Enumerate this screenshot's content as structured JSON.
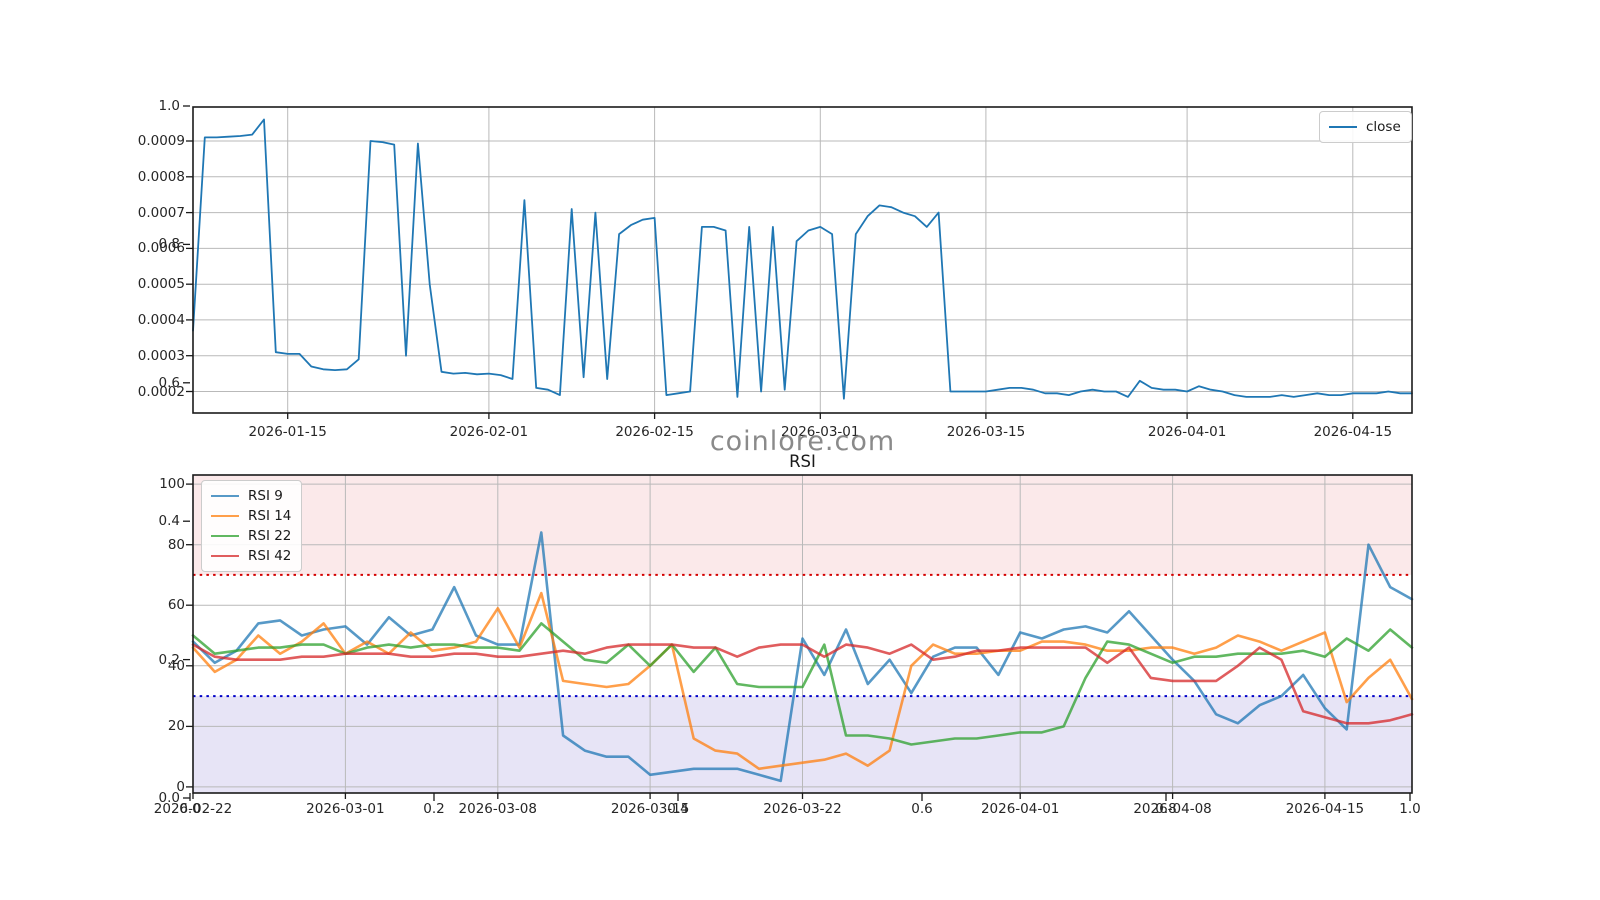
{
  "watermark": {
    "text": "coinlore.com",
    "color": "#8a8a8a"
  },
  "style": {
    "grid_color": "#b9b9b9",
    "spine_color": "#1a1a1a",
    "tick_text_color": "#262626",
    "background": "#ffffff"
  },
  "overlay_axis": {
    "x_tick_labels": [
      "0.0",
      "0.2",
      "0.4",
      "0.6",
      "0.8",
      "1.0"
    ],
    "y_tick_labels": [
      "0.0",
      "0.2",
      "0.4",
      "0.6",
      "0.8",
      "1.0"
    ]
  },
  "chart_data": [
    {
      "type": "line",
      "name": "price",
      "title": "",
      "legend_position": "upper right",
      "grid": true,
      "ylim": [
        0.00014,
        0.000995
      ],
      "yticks": [
        0.0002,
        0.0003,
        0.0004,
        0.0005,
        0.0006,
        0.0007,
        0.0008,
        0.0009
      ],
      "x_ticks": [
        "2026-01-15",
        "2026-02-01",
        "2026-02-15",
        "2026-03-01",
        "2026-03-15",
        "2026-04-01",
        "2026-04-15"
      ],
      "x": [
        "2026-01-07",
        "2026-01-08",
        "2026-01-09",
        "2026-01-10",
        "2026-01-11",
        "2026-01-12",
        "2026-01-13",
        "2026-01-14",
        "2026-01-15",
        "2026-01-16",
        "2026-01-17",
        "2026-01-18",
        "2026-01-19",
        "2026-01-20",
        "2026-01-21",
        "2026-01-22",
        "2026-01-23",
        "2026-01-24",
        "2026-01-25",
        "2026-01-26",
        "2026-01-27",
        "2026-01-28",
        "2026-01-29",
        "2026-01-30",
        "2026-01-31",
        "2026-02-01",
        "2026-02-02",
        "2026-02-03",
        "2026-02-04",
        "2026-02-05",
        "2026-02-06",
        "2026-02-07",
        "2026-02-08",
        "2026-02-09",
        "2026-02-10",
        "2026-02-11",
        "2026-02-12",
        "2026-02-13",
        "2026-02-14",
        "2026-02-15",
        "2026-02-16",
        "2026-02-17",
        "2026-02-18",
        "2026-02-19",
        "2026-02-20",
        "2026-02-21",
        "2026-02-22",
        "2026-02-23",
        "2026-02-24",
        "2026-02-25",
        "2026-02-26",
        "2026-02-27",
        "2026-02-28",
        "2026-03-01",
        "2026-03-02",
        "2026-03-03",
        "2026-03-04",
        "2026-03-05",
        "2026-03-06",
        "2026-03-07",
        "2026-03-08",
        "2026-03-09",
        "2026-03-10",
        "2026-03-11",
        "2026-03-12",
        "2026-03-13",
        "2026-03-14",
        "2026-03-15",
        "2026-03-16",
        "2026-03-17",
        "2026-03-18",
        "2026-03-19",
        "2026-03-20",
        "2026-03-21",
        "2026-03-22",
        "2026-03-23",
        "2026-03-24",
        "2026-03-25",
        "2026-03-26",
        "2026-03-27",
        "2026-03-28",
        "2026-03-29",
        "2026-03-30",
        "2026-03-31",
        "2026-04-01",
        "2026-04-02",
        "2026-04-03",
        "2026-04-04",
        "2026-04-05",
        "2026-04-06",
        "2026-04-07",
        "2026-04-08",
        "2026-04-09",
        "2026-04-10",
        "2026-04-11",
        "2026-04-12",
        "2026-04-13",
        "2026-04-14",
        "2026-04-15",
        "2026-04-16",
        "2026-04-17",
        "2026-04-18",
        "2026-04-19",
        "2026-04-20"
      ],
      "series": [
        {
          "name": "close",
          "color": "#1f77b4",
          "width": 1.8,
          "opacity": 1,
          "values": [
            0.00037,
            0.00091,
            0.00091,
            0.000912,
            0.000914,
            0.000918,
            0.00096,
            0.00031,
            0.000305,
            0.000305,
            0.00027,
            0.000262,
            0.00026,
            0.000262,
            0.00029,
            0.0009,
            0.000897,
            0.00089,
            0.0003,
            0.000893,
            0.0005,
            0.000255,
            0.00025,
            0.000252,
            0.000248,
            0.00025,
            0.000246,
            0.000235,
            0.000735,
            0.00021,
            0.000205,
            0.00019,
            0.00071,
            0.00024,
            0.0007,
            0.000235,
            0.00064,
            0.000665,
            0.00068,
            0.000685,
            0.00019,
            0.000195,
            0.0002,
            0.00066,
            0.00066,
            0.00065,
            0.000185,
            0.00066,
            0.0002,
            0.00066,
            0.000205,
            0.00062,
            0.00065,
            0.00066,
            0.00064,
            0.00018,
            0.00064,
            0.00069,
            0.00072,
            0.000715,
            0.0007,
            0.00069,
            0.00066,
            0.0007,
            0.0002,
            0.0002,
            0.0002,
            0.0002,
            0.000205,
            0.00021,
            0.00021,
            0.000205,
            0.000195,
            0.000195,
            0.00019,
            0.0002,
            0.000205,
            0.0002,
            0.0002,
            0.000185,
            0.00023,
            0.00021,
            0.000205,
            0.000205,
            0.0002,
            0.000215,
            0.000205,
            0.0002,
            0.00019,
            0.000185,
            0.000185,
            0.000185,
            0.00019,
            0.000185,
            0.00019,
            0.000195,
            0.00019,
            0.00019,
            0.000195,
            0.000195,
            0.000195,
            0.0002,
            0.000195,
            0.000195
          ]
        }
      ]
    },
    {
      "type": "line",
      "name": "rsi",
      "title": "RSI",
      "legend_position": "upper left",
      "grid": true,
      "ylim": [
        -2,
        103
      ],
      "yticks": [
        0,
        20,
        40,
        60,
        80,
        100
      ],
      "x_ticks": [
        "2026-02-22",
        "2026-03-01",
        "2026-03-08",
        "2026-03-15",
        "2026-03-22",
        "2026-04-01",
        "2026-04-08",
        "2026-04-15"
      ],
      "bands": [
        {
          "from": 70,
          "to": 103,
          "fill": "#fbe9ea",
          "name": "overbought-zone"
        },
        {
          "from": -2,
          "to": 30,
          "fill": "#e7e4f6",
          "name": "oversold-zone"
        }
      ],
      "thresholds": [
        {
          "value": 70,
          "color": "#d40000",
          "name": "overbought-line"
        },
        {
          "value": 30,
          "color": "#0000c8",
          "name": "oversold-line"
        }
      ],
      "x": [
        "2026-02-22",
        "2026-02-23",
        "2026-02-24",
        "2026-02-25",
        "2026-02-26",
        "2026-02-27",
        "2026-02-28",
        "2026-03-01",
        "2026-03-02",
        "2026-03-03",
        "2026-03-04",
        "2026-03-05",
        "2026-03-06",
        "2026-03-07",
        "2026-03-08",
        "2026-03-09",
        "2026-03-10",
        "2026-03-11",
        "2026-03-12",
        "2026-03-13",
        "2026-03-14",
        "2026-03-15",
        "2026-03-16",
        "2026-03-17",
        "2026-03-18",
        "2026-03-19",
        "2026-03-20",
        "2026-03-21",
        "2026-03-22",
        "2026-03-23",
        "2026-03-24",
        "2026-03-25",
        "2026-03-26",
        "2026-03-27",
        "2026-03-28",
        "2026-03-29",
        "2026-03-30",
        "2026-03-31",
        "2026-04-01",
        "2026-04-02",
        "2026-04-03",
        "2026-04-04",
        "2026-04-05",
        "2026-04-06",
        "2026-04-07",
        "2026-04-08",
        "2026-04-09",
        "2026-04-10",
        "2026-04-11",
        "2026-04-12",
        "2026-04-13",
        "2026-04-14",
        "2026-04-15",
        "2026-04-16",
        "2026-04-17",
        "2026-04-18",
        "2026-04-19"
      ],
      "series": [
        {
          "name": "RSI 9",
          "color": "#1f77b4",
          "width": 2.6,
          "opacity": 0.75,
          "values": [
            48,
            41,
            45,
            54,
            55,
            50,
            52,
            53,
            47,
            56,
            50,
            52,
            66,
            50,
            47,
            47,
            84,
            17,
            12,
            10,
            10,
            4,
            5,
            6,
            6,
            6,
            4,
            2,
            49,
            37,
            52,
            34,
            42,
            31,
            43,
            46,
            46,
            37,
            51,
            49,
            52,
            53,
            51,
            58,
            50,
            42,
            35,
            24,
            21,
            27,
            30,
            37,
            26,
            19,
            80,
            66,
            62
          ]
        },
        {
          "name": "RSI 14",
          "color": "#ff7f0e",
          "width": 2.6,
          "opacity": 0.75,
          "values": [
            46,
            38,
            42,
            50,
            44,
            48,
            54,
            44,
            48,
            44,
            51,
            45,
            46,
            48,
            59,
            46,
            64,
            35,
            34,
            33,
            34,
            40,
            47,
            16,
            12,
            11,
            6,
            7,
            8,
            9,
            11,
            7,
            12,
            40,
            47,
            44,
            44,
            45,
            45,
            48,
            48,
            47,
            45,
            45,
            46,
            46,
            44,
            46,
            50,
            48,
            45,
            48,
            51,
            28,
            36,
            42,
            29
          ]
        },
        {
          "name": "RSI 22",
          "color": "#2ca02c",
          "width": 2.6,
          "opacity": 0.75,
          "values": [
            50,
            44,
            45,
            46,
            46,
            47,
            47,
            44,
            46,
            47,
            46,
            47,
            47,
            46,
            46,
            45,
            54,
            48,
            42,
            41,
            47,
            40,
            47,
            38,
            46,
            34,
            33,
            33,
            33,
            47,
            17,
            17,
            16,
            14,
            15,
            16,
            16,
            17,
            18,
            18,
            20,
            36,
            48,
            47,
            44,
            41,
            43,
            43,
            44,
            44,
            44,
            45,
            43,
            49,
            45,
            52,
            46
          ]
        },
        {
          "name": "RSI 42",
          "color": "#d62728",
          "width": 2.6,
          "opacity": 0.75,
          "values": [
            47,
            43,
            42,
            42,
            42,
            43,
            43,
            44,
            44,
            44,
            43,
            43,
            44,
            44,
            43,
            43,
            44,
            45,
            44,
            46,
            47,
            47,
            47,
            46,
            46,
            43,
            46,
            47,
            47,
            43,
            47,
            46,
            44,
            47,
            42,
            43,
            45,
            45,
            46,
            46,
            46,
            46,
            41,
            46,
            36,
            35,
            35,
            35,
            40,
            46,
            42,
            25,
            23,
            21,
            21,
            22,
            24
          ]
        }
      ]
    }
  ]
}
